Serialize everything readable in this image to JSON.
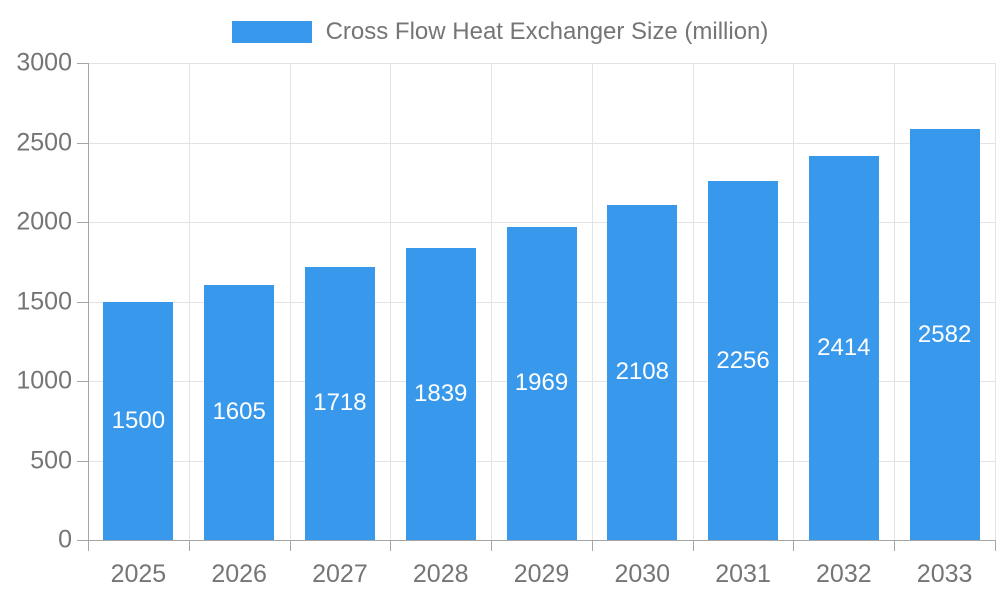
{
  "chart_data": {
    "type": "bar",
    "title": "Cross Flow Heat Exchanger Size (million)",
    "series": [
      {
        "name": "Cross Flow Heat Exchanger Size (million)",
        "values": [
          1500,
          1605,
          1718,
          1839,
          1969,
          2108,
          2256,
          2414,
          2582
        ]
      }
    ],
    "categories": [
      "2025",
      "2026",
      "2027",
      "2028",
      "2029",
      "2030",
      "2031",
      "2032",
      "2033"
    ],
    "bar_value_labels": [
      "1500",
      "1605",
      "1718",
      "1839",
      "1969",
      "2108",
      "2256",
      "2414",
      "2582"
    ],
    "xlabel": "",
    "ylabel": "",
    "ylim": [
      0,
      3000
    ],
    "yticks": [
      0,
      500,
      1000,
      1500,
      2000,
      2500,
      3000
    ],
    "grid": true,
    "legend_position": "top",
    "colors": {
      "bar": "#3899EC",
      "bar_label": "#ffffff",
      "axis_text": "#757575",
      "grid_line": "#e3e3e3",
      "axis_line": "#a6a6a6",
      "background": "#ffffff"
    }
  },
  "legend": {
    "label": "Cross Flow Heat Exchanger Size (million)"
  }
}
